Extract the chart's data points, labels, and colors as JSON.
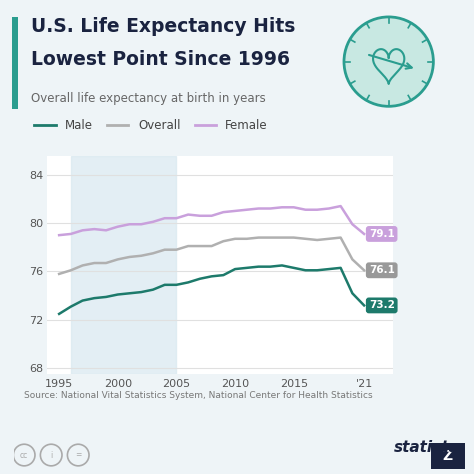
{
  "title_line1": "U.S. Life Expectancy Hits",
  "title_line2": "Lowest Point Since 1996",
  "subtitle": "Overall life expectancy at birth in years",
  "source": "Source: National Vital Statistics System, National Center for Health Statistics",
  "bg_color": "#eef4f7",
  "plot_bg_color": "#ffffff",
  "title_color": "#1a2340",
  "subtitle_color": "#666666",
  "source_color": "#777777",
  "title_bar_color": "#2a9d8f",
  "male_color": "#1d7a6b",
  "overall_color": "#b0b0b0",
  "female_color": "#c9a0dc",
  "shade_color": "#d8e8f0",
  "years": [
    1995,
    1996,
    1997,
    1998,
    1999,
    2000,
    2001,
    2002,
    2003,
    2004,
    2005,
    2006,
    2007,
    2008,
    2009,
    2010,
    2011,
    2012,
    2013,
    2014,
    2015,
    2016,
    2017,
    2018,
    2019,
    2020,
    2021
  ],
  "male": [
    72.5,
    73.1,
    73.6,
    73.8,
    73.9,
    74.1,
    74.2,
    74.3,
    74.5,
    74.9,
    74.9,
    75.1,
    75.4,
    75.6,
    75.7,
    76.2,
    76.3,
    76.4,
    76.4,
    76.5,
    76.3,
    76.1,
    76.1,
    76.2,
    76.3,
    74.2,
    73.2
  ],
  "overall": [
    75.8,
    76.1,
    76.5,
    76.7,
    76.7,
    77.0,
    77.2,
    77.3,
    77.5,
    77.8,
    77.8,
    78.1,
    78.1,
    78.1,
    78.5,
    78.7,
    78.7,
    78.8,
    78.8,
    78.8,
    78.8,
    78.7,
    78.6,
    78.7,
    78.8,
    77.0,
    76.1
  ],
  "female": [
    79.0,
    79.1,
    79.4,
    79.5,
    79.4,
    79.7,
    79.9,
    79.9,
    80.1,
    80.4,
    80.4,
    80.7,
    80.6,
    80.6,
    80.9,
    81.0,
    81.1,
    81.2,
    81.2,
    81.3,
    81.3,
    81.1,
    81.1,
    81.2,
    81.4,
    79.9,
    79.1
  ],
  "ylim": [
    67.5,
    85.5
  ],
  "yticks": [
    68,
    72,
    76,
    80,
    84
  ],
  "xticks": [
    1995,
    2000,
    2005,
    2010,
    2015,
    2021
  ],
  "xtick_labels": [
    "1995",
    "2000",
    "2005",
    "2010",
    "2015",
    "'21"
  ],
  "shade_start": 1996,
  "shade_end": 2005,
  "label_male": "Male",
  "label_overall": "Overall",
  "label_female": "Female",
  "end_label_male": "73.2",
  "end_label_overall": "76.1",
  "end_label_female": "79.1",
  "end_label_male_bg": "#1d7a6b",
  "end_label_overall_bg": "#999999",
  "end_label_female_bg": "#c9a0dc",
  "clock_color": "#2a9d8f",
  "clock_bg": "#c8e8e2"
}
